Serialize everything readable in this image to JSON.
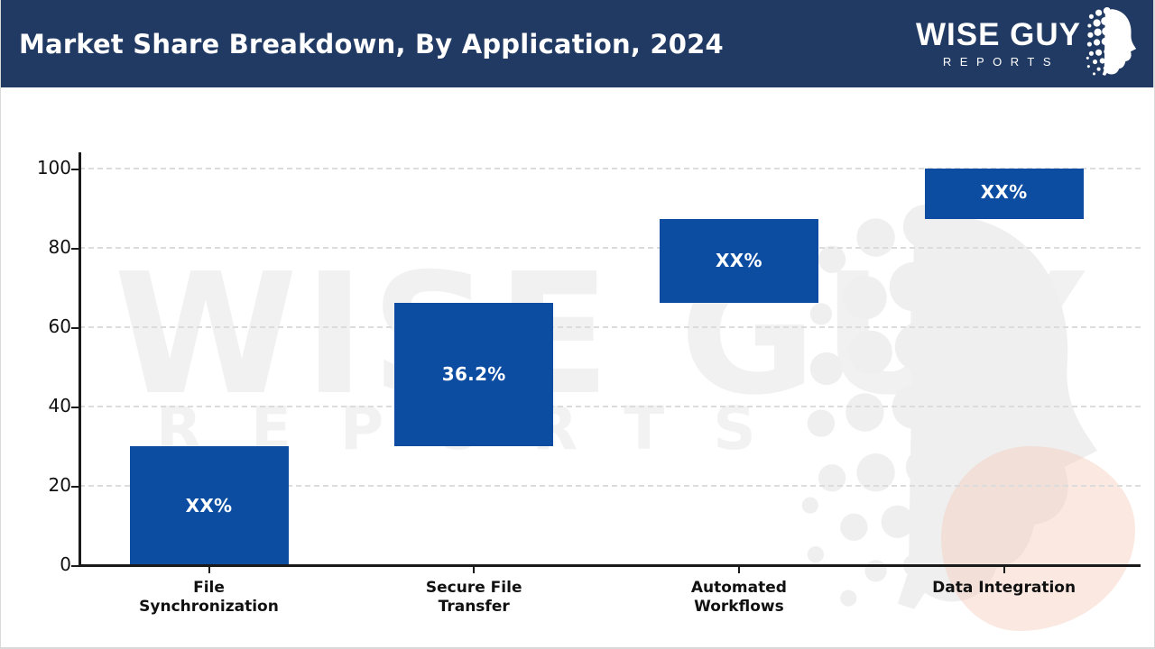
{
  "header": {
    "title": "Market Share Breakdown, By Application, 2024",
    "logo": {
      "line1": "WISE GUY",
      "line2": "REPORTS"
    }
  },
  "watermark": {
    "line1": "WISE GUY",
    "line2": "REPORTS"
  },
  "colors": {
    "header_bg": "#213a63",
    "bar": "#0c4da2",
    "bar_label": "#ffffff",
    "grid": "#dcdcdc",
    "axis": "#1a1a1a",
    "watermark": "#f1f1f1"
  },
  "chart_data": {
    "type": "bar",
    "subtype": "waterfall",
    "title": "Market Share Breakdown, By Application, 2024",
    "xlabel": "",
    "ylabel": "",
    "categories": [
      "File Synchronization",
      "Secure File Transfer",
      "Automated Workflows",
      "Data Integration"
    ],
    "category_lines": [
      [
        "File",
        "Synchronization"
      ],
      [
        "Secure File",
        "Transfer"
      ],
      [
        "Automated",
        "Workflows"
      ],
      [
        "Data Integration"
      ]
    ],
    "segments": [
      {
        "category": "File Synchronization",
        "start": 0,
        "end": 30,
        "label": "XX%"
      },
      {
        "category": "Secure File Transfer",
        "start": 30,
        "end": 66.2,
        "label": "36.2%"
      },
      {
        "category": "Automated Workflows",
        "start": 66.2,
        "end": 87.3,
        "label": "XX%"
      },
      {
        "category": "Data Integration",
        "start": 87.3,
        "end": 100,
        "label": "XX%"
      }
    ],
    "yticks": [
      "0",
      "20",
      "40",
      "60",
      "80",
      "100"
    ],
    "ytick_values": [
      0,
      20,
      40,
      60,
      80,
      100
    ],
    "ylim": [
      0,
      104
    ],
    "grid": "horizontal-dashed",
    "legend": "none"
  }
}
